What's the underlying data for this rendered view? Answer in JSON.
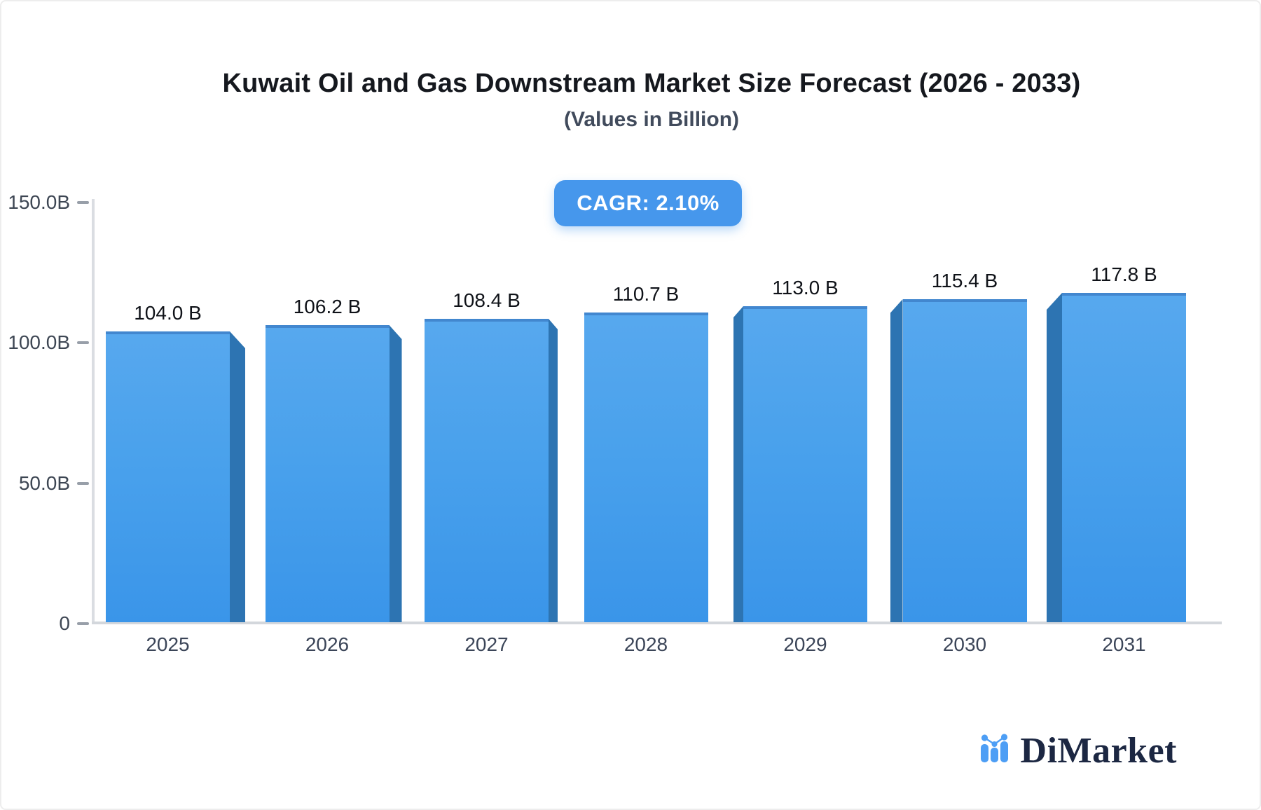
{
  "header": {
    "title": "Kuwait Oil and Gas Downstream Market Size Forecast (2026 - 2033)",
    "subtitle": "(Values in Billion)"
  },
  "badge": {
    "label": "CAGR: 2.10%",
    "background": "#4697ec",
    "text_color": "#ffffff"
  },
  "chart_data": {
    "type": "bar",
    "title": "Kuwait Oil and Gas Downstream Market Size Forecast (2026 - 2033)",
    "subtitle": "(Values in Billion)",
    "categories": [
      "2025",
      "2026",
      "2027",
      "2028",
      "2029",
      "2030",
      "2031"
    ],
    "values": [
      104.0,
      106.2,
      108.4,
      110.7,
      113.0,
      115.4,
      117.8
    ],
    "value_labels": [
      "104.0 B",
      "106.2 B",
      "108.4 B",
      "110.7 B",
      "113.0 B",
      "115.4 B",
      "117.8 B"
    ],
    "xlabel": "",
    "ylabel": "",
    "ylim": [
      0,
      150
    ],
    "y_tick_values": [
      150,
      100,
      50,
      0
    ],
    "y_tick_labels": [
      "150.0B",
      "100.0B",
      "50.0B",
      "0"
    ],
    "grid": false,
    "legend": "none",
    "bar_color_top": "#57a8ee",
    "bar_color_bottom": "#3a95e9",
    "bar_side_color": "#2d74b2",
    "bar_top_edge_color": "#4287cf"
  },
  "logo": {
    "text": "DiMarket",
    "icon": "mini-bar-chart-icon",
    "text_color": "#1c2742",
    "icon_color": "#4d9ef5"
  }
}
